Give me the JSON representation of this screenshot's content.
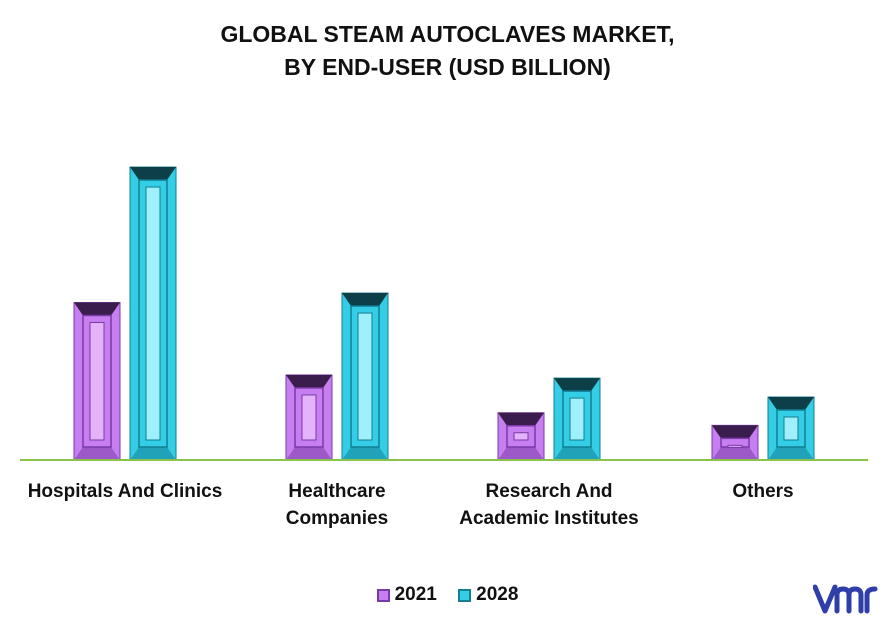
{
  "title_line1": "GLOBAL STEAM AUTOCLAVES MARKET,",
  "title_line2": "BY END-USER (USD BILLION)",
  "colors": {
    "s2021": "#c77ef0",
    "s2028": "#33cde6",
    "axis": "#8bc34a"
  },
  "legend": [
    {
      "label": "2021",
      "icon": "purple-bar-swatch"
    },
    {
      "label": "2028",
      "icon": "cyan-bar-swatch"
    }
  ],
  "logo_icon": "vmr-logo",
  "chart_data": {
    "type": "bar",
    "title": "GLOBAL STEAM AUTOCLAVES MARKET, BY END-USER (USD BILLION)",
    "categories": [
      [
        "Hospitals And Clinics"
      ],
      [
        "Healthcare",
        "Companies"
      ],
      [
        "Research And",
        "Academic Institutes"
      ],
      [
        "Others"
      ]
    ],
    "series": [
      {
        "name": "2021",
        "values": [
          0.5,
          0.27,
          0.15,
          0.11
        ]
      },
      {
        "name": "2028",
        "values": [
          0.93,
          0.53,
          0.26,
          0.2
        ]
      }
    ],
    "ylim": [
      0,
      1.0
    ],
    "grid": false,
    "legend_position": "bottom"
  }
}
